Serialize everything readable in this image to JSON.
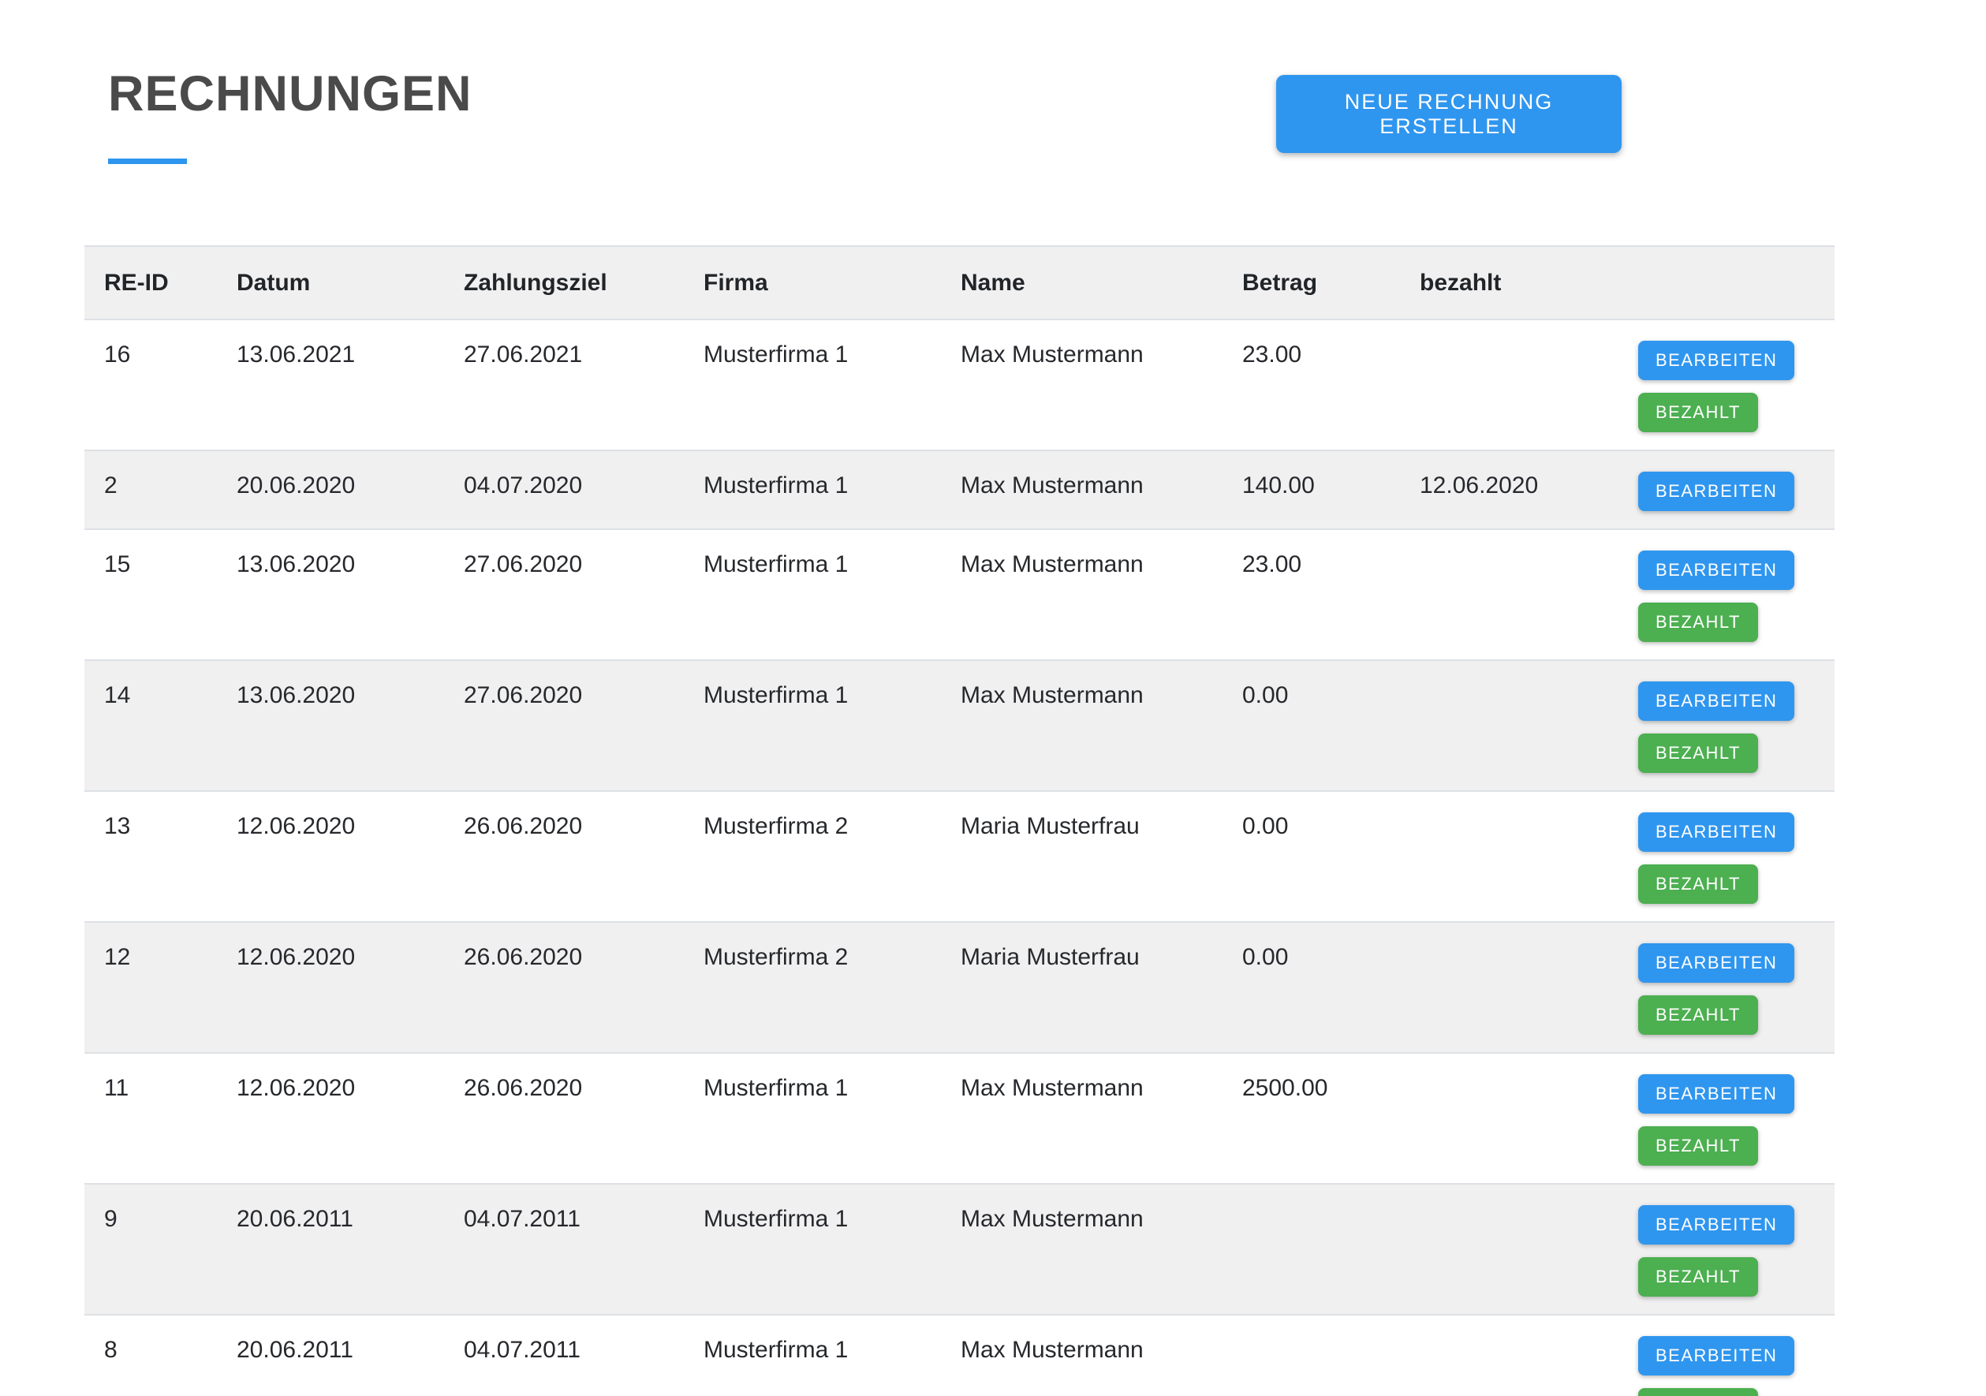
{
  "page": {
    "title": "RECHNUNGEN",
    "create_button_label": "NEUE RECHNUNG ERSTELLEN",
    "accent_color": "#2f96ef"
  },
  "table": {
    "columns": [
      "RE-ID",
      "Datum",
      "Zahlungsziel",
      "Firma",
      "Name",
      "Betrag",
      "bezahlt",
      ""
    ],
    "action_labels": {
      "edit": "BEARBEITEN",
      "paid": "BEZAHLT"
    },
    "colors": {
      "edit_button": "#2f96ef",
      "paid_button": "#4caf50",
      "stripe_row": "#f0f0f1",
      "row_border": "#dde1e5"
    },
    "rows": [
      {
        "re_id": "16",
        "datum": "13.06.2021",
        "zahlungsziel": "27.06.2021",
        "firma": "Musterfirma 1",
        "name": "Max Mustermann",
        "betrag": "23.00",
        "bezahlt": "",
        "show_paid_button": true
      },
      {
        "re_id": "2",
        "datum": "20.06.2020",
        "zahlungsziel": "04.07.2020",
        "firma": "Musterfirma 1",
        "name": "Max Mustermann",
        "betrag": "140.00",
        "bezahlt": "12.06.2020",
        "show_paid_button": false
      },
      {
        "re_id": "15",
        "datum": "13.06.2020",
        "zahlungsziel": "27.06.2020",
        "firma": "Musterfirma 1",
        "name": "Max Mustermann",
        "betrag": "23.00",
        "bezahlt": "",
        "show_paid_button": true
      },
      {
        "re_id": "14",
        "datum": "13.06.2020",
        "zahlungsziel": "27.06.2020",
        "firma": "Musterfirma 1",
        "name": "Max Mustermann",
        "betrag": "0.00",
        "bezahlt": "",
        "show_paid_button": true
      },
      {
        "re_id": "13",
        "datum": "12.06.2020",
        "zahlungsziel": "26.06.2020",
        "firma": "Musterfirma 2",
        "name": "Maria Musterfrau",
        "betrag": "0.00",
        "bezahlt": "",
        "show_paid_button": true
      },
      {
        "re_id": "12",
        "datum": "12.06.2020",
        "zahlungsziel": "26.06.2020",
        "firma": "Musterfirma 2",
        "name": "Maria Musterfrau",
        "betrag": "0.00",
        "bezahlt": "",
        "show_paid_button": true
      },
      {
        "re_id": "11",
        "datum": "12.06.2020",
        "zahlungsziel": "26.06.2020",
        "firma": "Musterfirma 1",
        "name": "Max Mustermann",
        "betrag": "2500.00",
        "bezahlt": "",
        "show_paid_button": true
      },
      {
        "re_id": "9",
        "datum": "20.06.2011",
        "zahlungsziel": "04.07.2011",
        "firma": "Musterfirma 1",
        "name": "Max Mustermann",
        "betrag": "",
        "bezahlt": "",
        "show_paid_button": true
      },
      {
        "re_id": "8",
        "datum": "20.06.2011",
        "zahlungsziel": "04.07.2011",
        "firma": "Musterfirma 1",
        "name": "Max Mustermann",
        "betrag": "",
        "bezahlt": "",
        "show_paid_button": true
      }
    ]
  }
}
